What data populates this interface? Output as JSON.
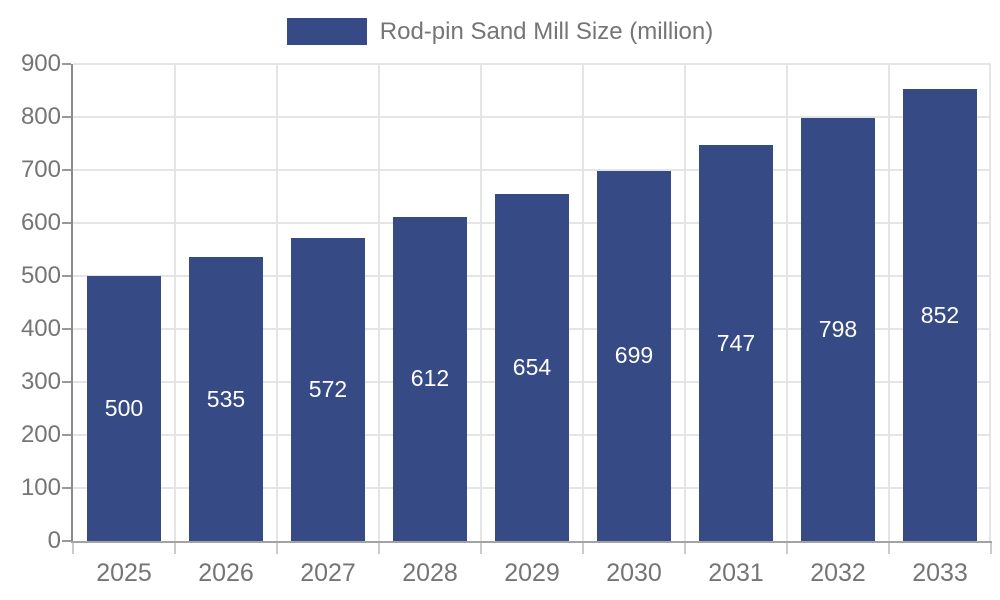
{
  "legend": {
    "label": "Rod-pin Sand Mill Size (million)"
  },
  "chart_data": {
    "type": "bar",
    "title": "Rod-pin Sand Mill Size (million)",
    "categories": [
      "2025",
      "2026",
      "2027",
      "2028",
      "2029",
      "2030",
      "2031",
      "2032",
      "2033"
    ],
    "values": [
      500,
      535,
      572,
      612,
      654,
      699,
      747,
      798,
      852
    ],
    "xlabel": "",
    "ylabel": "",
    "ylim": [
      0,
      900
    ],
    "ytick_step": 100,
    "yticks": [
      0,
      100,
      200,
      300,
      400,
      500,
      600,
      700,
      800,
      900
    ],
    "grid": true,
    "legend_position": "top-center",
    "bar_labels_visible": true,
    "colors": {
      "bar": "#364A85",
      "bar_label": "#FFFFFF",
      "axis_text": "#757575",
      "grid_line": "#E5E5E8",
      "axis_line_y": "#8A8A8A",
      "axis_line_x": "#A3A3A3",
      "tick_line_y": "#999999",
      "tick_line_x": "#CCCCCC"
    }
  }
}
